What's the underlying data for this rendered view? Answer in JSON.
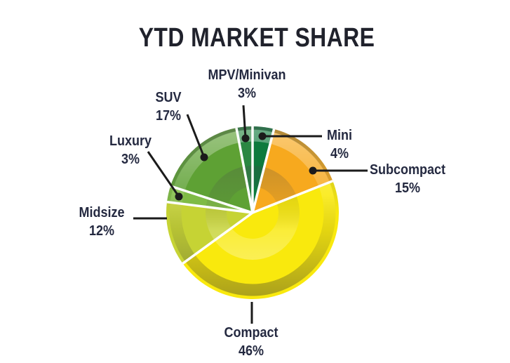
{
  "title": "YTD MARKET SHARE",
  "chart_data": {
    "type": "pie",
    "title": "YTD MARKET SHARE",
    "start_angle_deg": 0,
    "direction": "clockwise",
    "labels_show_percent": true,
    "background": "#ffffff",
    "slices": [
      {
        "label": "Mini",
        "value_pct": 4,
        "pct_text": "4%",
        "color": "#0e7a3d"
      },
      {
        "label": "Subcompact",
        "value_pct": 15,
        "pct_text": "15%",
        "color": "#f7a91e"
      },
      {
        "label": "Compact",
        "value_pct": 46,
        "pct_text": "46%",
        "color": "#f9e90d"
      },
      {
        "label": "Midsize",
        "value_pct": 12,
        "pct_text": "12%",
        "color": "#c6d334"
      },
      {
        "label": "Luxury",
        "value_pct": 3,
        "pct_text": "3%",
        "color": "#7fbb45"
      },
      {
        "label": "SUV",
        "value_pct": 17,
        "pct_text": "17%",
        "color": "#5ea134"
      },
      {
        "label": "MPV/Minivan",
        "value_pct": 3,
        "pct_text": "3%",
        "color": "#2b8742"
      }
    ]
  },
  "colors": {
    "title_text": "#20222c",
    "label_text": "#242940",
    "leader_line": "#1b1b1b",
    "separator": "#ffffff"
  }
}
